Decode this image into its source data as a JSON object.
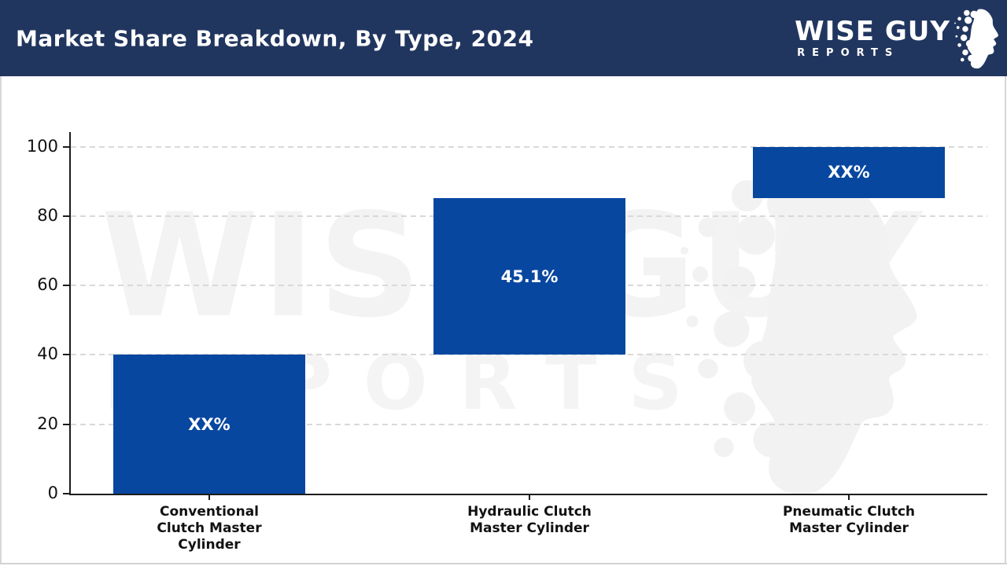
{
  "header": {
    "title": "Market Share Breakdown, By Type, 2024",
    "logo": {
      "wordmark": "WISE GUY",
      "subtext": "REPORTS"
    }
  },
  "watermark": {
    "wordmark": "WISE GUY",
    "subtext": "REPORTS"
  },
  "colors": {
    "header_bg": "#21365f",
    "bar_blue": "#0847a0",
    "grid_gray": "#d9d9d9",
    "axis_black": "#1c1c1c",
    "watermark_gray": "#f2f2f2",
    "frame_gray": "#d4d4d4",
    "bar_label_white": "#ffffff"
  },
  "chart_data": {
    "type": "bar",
    "subtype": "waterfall",
    "title": "Market Share Breakdown, By Type, 2024",
    "categories": [
      "Conventional Clutch Master Cylinder",
      "Hydraulic Clutch Master Cylinder",
      "Pneumatic Clutch Master Cylinder"
    ],
    "category_label_lines": [
      [
        "Conventional",
        "Clutch Master",
        "Cylinder"
      ],
      [
        "Hydraulic Clutch",
        "Master Cylinder"
      ],
      [
        "Pneumatic Clutch",
        "Master Cylinder"
      ]
    ],
    "bars": [
      {
        "start": 0,
        "end": 40,
        "label": "XX%"
      },
      {
        "start": 40,
        "end": 85.1,
        "label": "45.1%"
      },
      {
        "start": 85.1,
        "end": 100,
        "label": "XX%"
      }
    ],
    "segment_sizes_pct": [
      40,
      45.1,
      14.9
    ],
    "yticks": [
      0,
      20,
      40,
      60,
      80,
      100
    ],
    "ylim": [
      0,
      100
    ],
    "grid": "horizontal-dashed",
    "legend": "none",
    "bar_color": "#0847a0"
  }
}
